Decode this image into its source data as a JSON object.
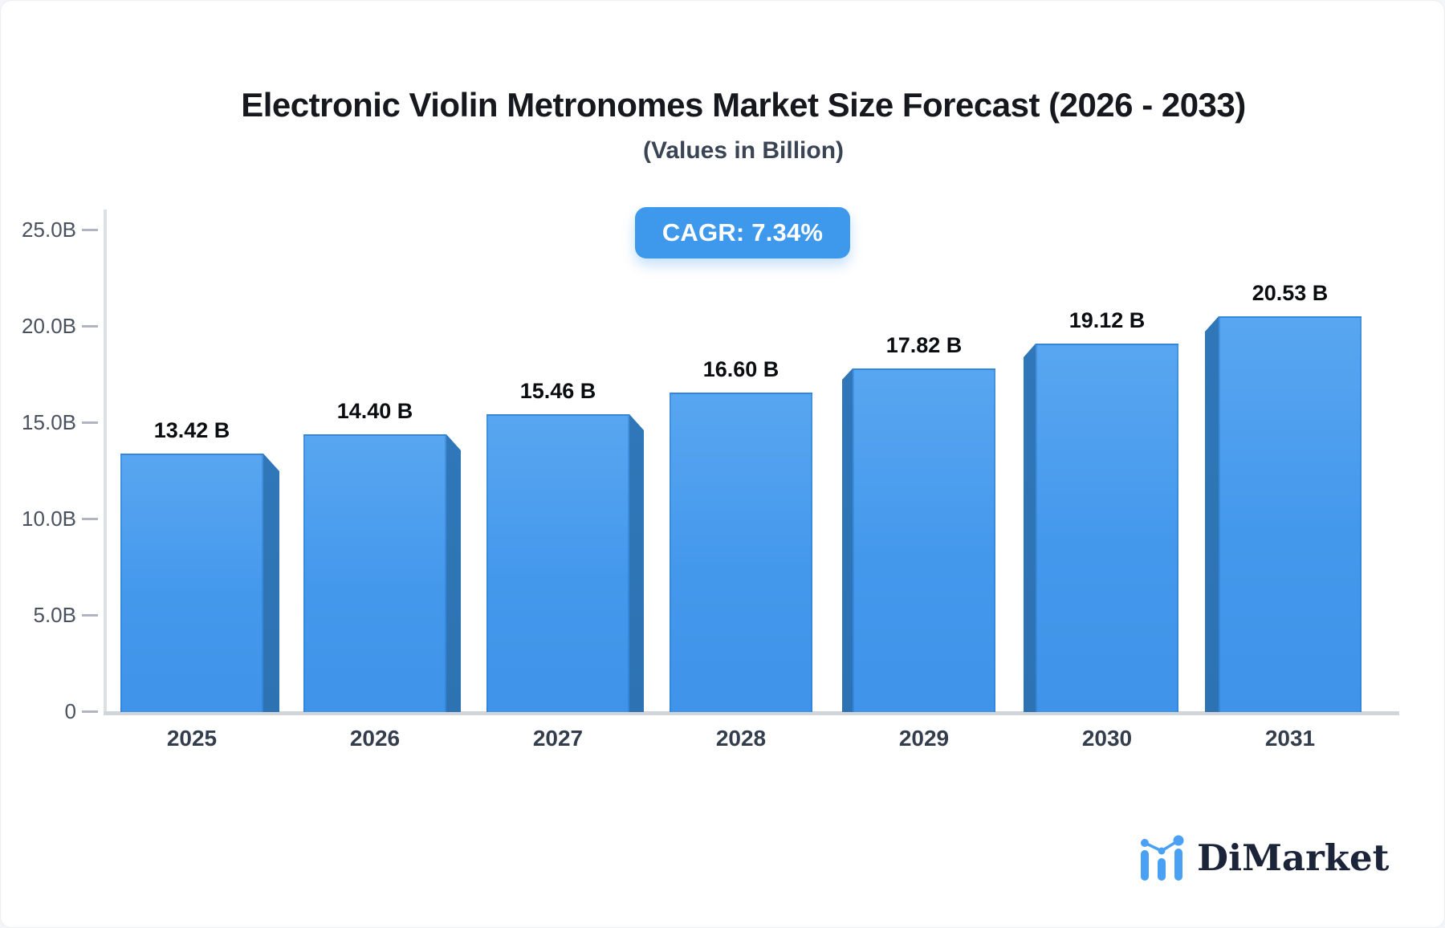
{
  "title": "Electronic Violin Metronomes Market Size Forecast (2026 - 2033)",
  "subtitle": "(Values in Billion)",
  "badge_label": "CAGR: 7.34%",
  "brand": {
    "name": "DiMarket",
    "icon": "dimarket-bars-icon"
  },
  "chart_data": {
    "type": "bar",
    "title": "Electronic Violin Metronomes Market Size Forecast (2026 - 2033)",
    "subtitle": "(Values in Billion)",
    "cagr_label": "CAGR: 7.34%",
    "categories": [
      "2025",
      "2026",
      "2027",
      "2028",
      "2029",
      "2030",
      "2031"
    ],
    "values": [
      13.42,
      14.4,
      15.46,
      16.6,
      17.82,
      19.12,
      20.53
    ],
    "value_labels": [
      "13.42 B",
      "14.40 B",
      "15.46 B",
      "16.60 B",
      "17.82 B",
      "19.12 B",
      "20.53 B"
    ],
    "unit": "Billion",
    "xlabel": "",
    "ylabel": "",
    "ylim": [
      0,
      25
    ],
    "y_tick_interval": 5,
    "y_ticks": [
      {
        "value": 0,
        "label": "0"
      },
      {
        "value": 5,
        "label": "5.0B"
      },
      {
        "value": 10,
        "label": "10.0B"
      },
      {
        "value": 15,
        "label": "15.0B"
      },
      {
        "value": 20,
        "label": "20.0B"
      },
      {
        "value": 25,
        "label": "25.0B"
      }
    ],
    "grid": false,
    "legend": false,
    "bar_style": "3d-perspective",
    "colors": {
      "bar_face_top": "#58A6F1",
      "bar_face_bottom": "#3F93E9",
      "bar_side": "#2D73B4",
      "badge_bg": "#3E98EB",
      "badge_text": "#FFFFFF",
      "axis_line": "#DCDFE4",
      "baseline": "#D2D6DB",
      "tick_label": "#49515E",
      "year_label": "#333D4B",
      "value_label": "#0B0D11",
      "title": "#16181D",
      "subtitle": "#3A4454",
      "brand_text": "#1B2438",
      "brand_icon": "#4BA0F4"
    }
  }
}
